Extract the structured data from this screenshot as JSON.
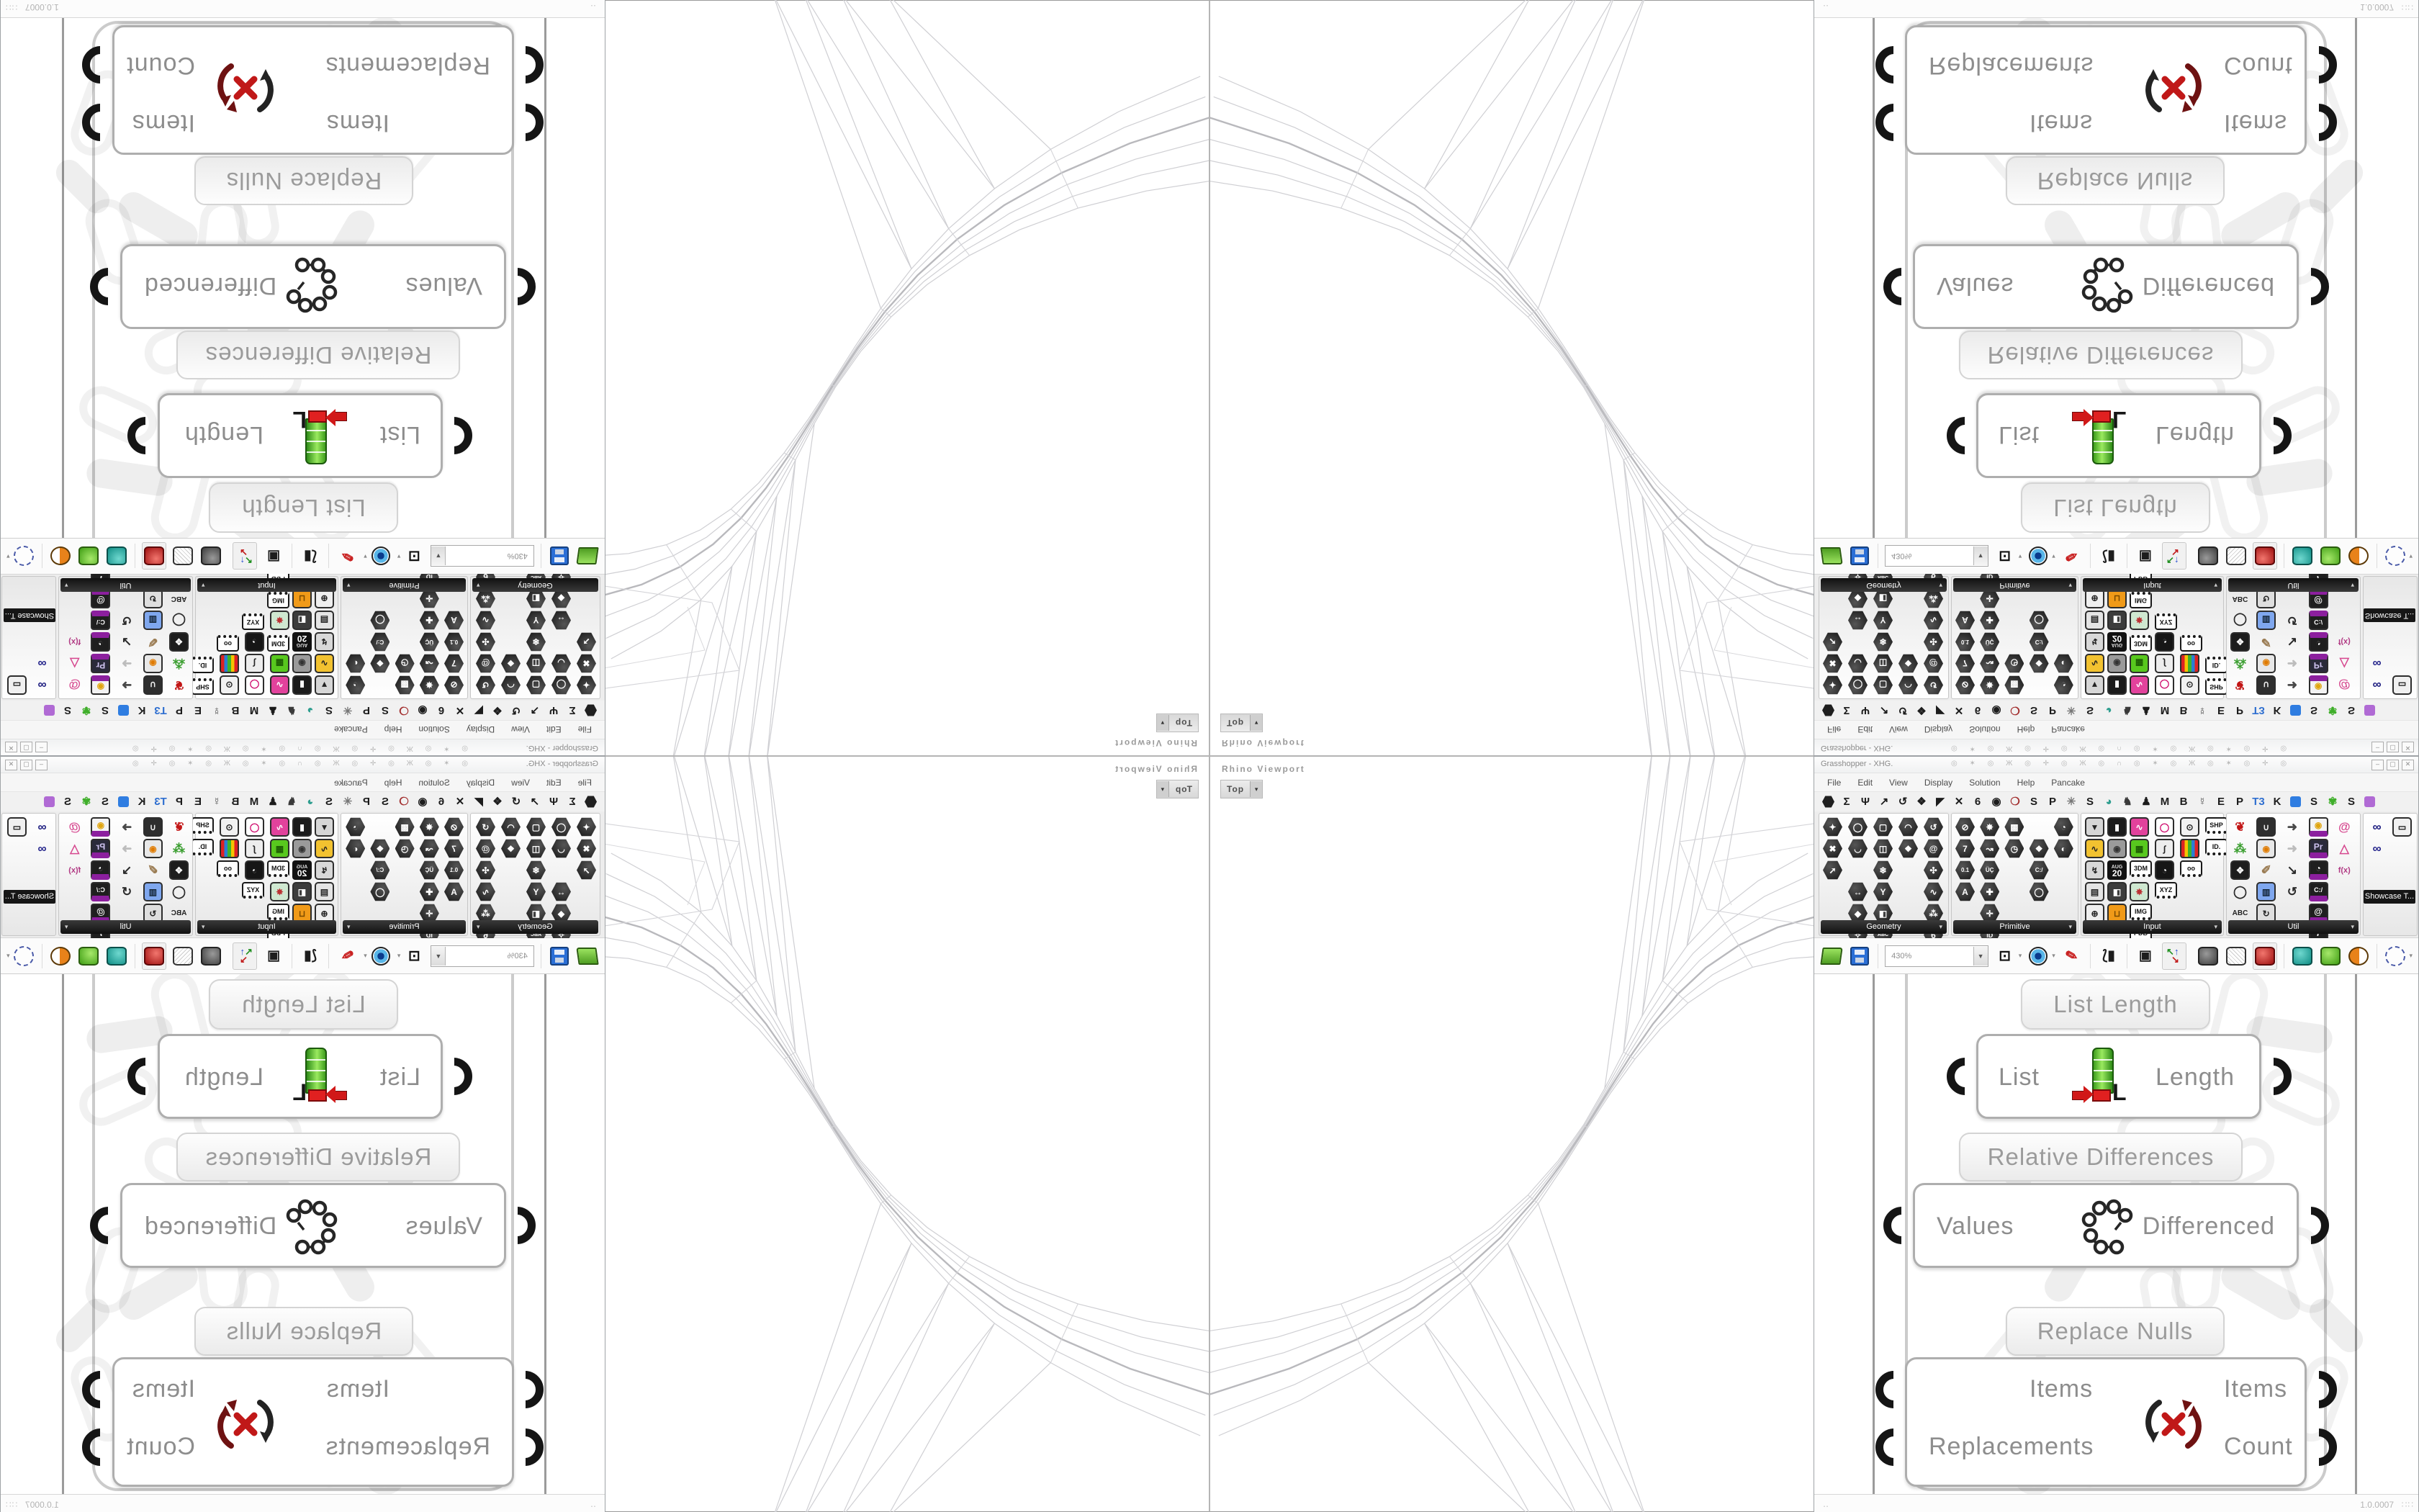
{
  "viewport": {
    "title": "Rhino Viewport",
    "tab": "Top",
    "tab_arrow": "▾"
  },
  "gh": {
    "title": "Grasshopper - XHG.",
    "doodles": "◎ ✶ ◎ Ж ◎ ✛ ◎ Ж ◎ ∩ ◎ ✶ ◎ Ж ◎ ✶ ◎ ✛ ◎ ∩ ◎ ◎ ✶ ◎ Ж ◎ ✶ ◎ ∩ ◎ ✛",
    "win_buttons": [
      "–",
      "▢",
      "✕"
    ],
    "menu": [
      "File",
      "Edit",
      "View",
      "Display",
      "Solution",
      "Help",
      "Pancake"
    ],
    "tabs": [
      {
        "k": "hex"
      },
      {
        "g": "Σ"
      },
      {
        "g": "Ψ"
      },
      {
        "g": "↗"
      },
      {
        "g": "↺"
      },
      {
        "g": "❖"
      },
      {
        "g": "◤"
      },
      {
        "g": "✕"
      },
      {
        "g": "6"
      },
      {
        "g": "◉"
      },
      {
        "g": "❍",
        "c": "#a33030"
      },
      {
        "g": "S"
      },
      {
        "g": "P"
      },
      {
        "g": "✳",
        "c": "#777"
      },
      {
        "g": "S"
      },
      {
        "g": "◕",
        "c": "#2f9e8f"
      },
      {
        "g": "♞",
        "c": "#3a3a3a"
      },
      {
        "g": "♟"
      },
      {
        "g": "M"
      },
      {
        "g": "B"
      },
      {
        "g": "☿",
        "c": "#4a4a4a"
      },
      {
        "g": "E"
      },
      {
        "g": "P"
      },
      {
        "g": "T3",
        "c": "#2f6fd0"
      },
      {
        "g": "K"
      },
      {
        "k": "sq",
        "bg": "#2f7de1"
      },
      {
        "g": "S"
      },
      {
        "g": "✾",
        "c": "#3fae2a"
      },
      {
        "g": "S"
      },
      {
        "k": "sq",
        "bg": "#b06ad4"
      }
    ],
    "panels": [
      {
        "label": "Geometry",
        "cols": 5,
        "icons": [
          {
            "k": "hex",
            "g": "✦"
          },
          {
            "k": "hex",
            "g": "◯"
          },
          {
            "k": "hex",
            "g": "▢"
          },
          {
            "k": "hex",
            "g": "◠"
          },
          {
            "k": "hex",
            "g": "↺"
          },
          {
            "k": "hex",
            "g": "✖"
          },
          {
            "k": "hex",
            "g": "◡"
          },
          {
            "k": "hex",
            "g": "◫"
          },
          {
            "k": "hex",
            "g": "❖"
          },
          {
            "k": "hex",
            "g": "@"
          },
          {
            "k": "hex",
            "g": "➚"
          },
          {
            "k": "blank"
          },
          {
            "k": "hex",
            "g": "❄"
          },
          {
            "k": "blank"
          },
          {
            "k": "hex",
            "g": "✣"
          },
          {
            "k": "blank"
          },
          {
            "k": "hex",
            "g": "↔"
          },
          {
            "k": "hex",
            "g": "Y"
          },
          {
            "k": "blank"
          },
          {
            "k": "hex",
            "g": "∿"
          },
          {
            "k": "blank"
          },
          {
            "k": "hex",
            "g": "◆"
          },
          {
            "k": "hex",
            "g": "◧"
          },
          {
            "k": "blank"
          },
          {
            "k": "hex",
            "g": "⁂"
          },
          {
            "k": "blank"
          },
          {
            "k": "hex",
            "g": "✧"
          },
          {
            "k": "hex",
            "g": "ABC",
            "s": 7
          },
          {
            "k": "blank"
          },
          {
            "k": "hex",
            "g": "6"
          }
        ]
      },
      {
        "label": "Primitive",
        "cols": 5,
        "icons": [
          {
            "k": "hex",
            "g": "⊘"
          },
          {
            "k": "hex",
            "g": "✸"
          },
          {
            "k": "hex",
            "g": "▩"
          },
          {
            "k": "blank"
          },
          {
            "k": "hex",
            "g": "◔"
          },
          {
            "k": "hex",
            "g": "7"
          },
          {
            "k": "hex",
            "g": "↝"
          },
          {
            "k": "hex",
            "g": "◷"
          },
          {
            "k": "hex",
            "g": "❖"
          },
          {
            "k": "hex",
            "g": "◐"
          },
          {
            "k": "hex",
            "g": "0.1",
            "s": 8
          },
          {
            "k": "hex",
            "g": "ÜÇ",
            "s": 8
          },
          {
            "k": "blank"
          },
          {
            "k": "hex",
            "g": "C:/",
            "s": 8
          },
          {
            "k": "blank"
          },
          {
            "k": "hex",
            "g": "A"
          },
          {
            "k": "hex",
            "g": "✚"
          },
          {
            "k": "blank"
          },
          {
            "k": "hex",
            "g": "◯"
          },
          {
            "k": "blank"
          },
          {
            "k": "blank"
          },
          {
            "k": "hex",
            "g": "✛"
          },
          {
            "k": "blank"
          },
          {
            "k": "blank"
          },
          {
            "k": "blank"
          },
          {
            "k": "blank"
          },
          {
            "k": "hex",
            "g": "ID",
            "s": 9
          },
          {
            "k": "blank"
          },
          {
            "k": "blank"
          },
          {
            "k": "blank"
          }
        ]
      },
      {
        "label": "Input",
        "cols": 6,
        "icons": [
          {
            "k": "sq",
            "g": "▼",
            "bg": "#d6d6d6"
          },
          {
            "k": "sq",
            "g": "▮",
            "bg": "#1b1b1b",
            "c": "#fff"
          },
          {
            "k": "sq",
            "g": "∿",
            "bg": "#e2429c",
            "c": "#fff"
          },
          {
            "k": "sq",
            "g": "◯",
            "bg": "#ffffff",
            "c": "#c06"
          },
          {
            "k": "sq",
            "g": "⊙",
            "bg": "#f1f1f1"
          },
          {
            "k": "chip",
            "g": "SHP"
          },
          {
            "k": "sq",
            "g": "∿",
            "bg": "#f2c230"
          },
          {
            "k": "sq",
            "g": "◉",
            "bg": "#9a9a9a",
            "c": "#333"
          },
          {
            "k": "sq",
            "g": "▦",
            "bg": "#58c81e",
            "c": "#1d5c04"
          },
          {
            "k": "sq",
            "g": "∫",
            "bg": "#ededed"
          },
          {
            "k": "stripes"
          },
          {
            "k": "chip",
            "g": "ID."
          },
          {
            "k": "sq",
            "g": "↯",
            "bg": "#d8d8d8"
          },
          {
            "k": "cal",
            "g": "AUG",
            "b": "20"
          },
          {
            "k": "chip",
            "g": "3DM"
          },
          {
            "k": "sq",
            "g": "◔",
            "bg": "#161616",
            "c": "#fff"
          },
          {
            "k": "chip",
            "g": "oo"
          },
          {
            "k": "blank"
          },
          {
            "k": "sq",
            "g": "▤",
            "bg": "#e4e4e4"
          },
          {
            "k": "sq",
            "g": "◧",
            "bg": "#3c3c3c",
            "c": "#fff"
          },
          {
            "k": "sq",
            "g": "✸",
            "bg": "#cfe8d0",
            "c": "#b33"
          },
          {
            "k": "chip",
            "g": "XYZ"
          },
          {
            "k": "blank"
          },
          {
            "k": "blank"
          },
          {
            "k": "sq",
            "g": "⊕",
            "bg": "#efefef"
          },
          {
            "k": "sq",
            "g": "⊔",
            "bg": "#f09a18",
            "c": "#7a4a00"
          },
          {
            "k": "chip",
            "g": "IMG"
          },
          {
            "k": "blank"
          },
          {
            "k": "blank"
          },
          {
            "k": "blank"
          },
          {
            "k": "blank"
          },
          {
            "k": "blank"
          },
          {
            "k": "chip",
            "g": "PDB"
          },
          {
            "k": "blank"
          },
          {
            "k": "blank"
          },
          {
            "k": "blank"
          }
        ]
      },
      {
        "label": "Util",
        "cols": 5,
        "icons": [
          {
            "k": "plain",
            "g": "❦",
            "c": "#c21616"
          },
          {
            "k": "sq",
            "g": "∪",
            "bg": "#2e2e2e",
            "c": "#eee"
          },
          {
            "k": "plain",
            "g": "➜",
            "c": "#4a4a4a"
          },
          {
            "k": "banner",
            "g": "◉",
            "c": "#e0a50f"
          },
          {
            "k": "plain",
            "g": "@",
            "c": "#d6488f"
          },
          {
            "k": "plain",
            "g": "⁂",
            "c": "#3a9e2f"
          },
          {
            "k": "sq",
            "g": "◉",
            "bg": "#e8e8e8",
            "c": "#e07b00"
          },
          {
            "k": "plain",
            "g": "➜",
            "c": "#bdbdbd"
          },
          {
            "k": "banner",
            "g": "Pr",
            "bg": "#2a2a3a",
            "c": "#cfc3f0"
          },
          {
            "k": "plain",
            "g": "△",
            "c": "#d6488f"
          },
          {
            "k": "sq",
            "g": "✥",
            "bg": "#1d1d1d",
            "c": "#fff"
          },
          {
            "k": "plain",
            "g": "✐",
            "c": "#9a7b52"
          },
          {
            "k": "plain",
            "g": "↘",
            "c": "#2b2b2b"
          },
          {
            "k": "banner",
            "g": "◔",
            "bg": "#1f1f1f",
            "c": "#fff"
          },
          {
            "k": "plain",
            "g": "f(x)",
            "c": "#b13a84",
            "s": 11
          },
          {
            "k": "plain",
            "g": "◯",
            "c": "#2b2b2b"
          },
          {
            "k": "sq",
            "g": "▥",
            "bg": "#7fa7ee",
            "c": "#123"
          },
          {
            "k": "plain",
            "g": "↺",
            "c": "#2b2b2b"
          },
          {
            "k": "banner",
            "g": "C:/",
            "bg": "#1f1f1f",
            "c": "#fff",
            "s": 9
          },
          {
            "k": "blank"
          },
          {
            "k": "plain",
            "g": "ABC",
            "c": "#222",
            "s": 10
          },
          {
            "k": "sq",
            "g": "↻",
            "bg": "#dedede",
            "c": "#222"
          },
          {
            "k": "blank"
          },
          {
            "k": "banner",
            "g": "@",
            "bg": "#1f1f1f",
            "c": "#fff"
          },
          {
            "k": "blank"
          },
          {
            "k": "blank"
          },
          {
            "k": "blank"
          },
          {
            "k": "blank"
          },
          {
            "k": "banner",
            "g": "7",
            "bg": "#1f1f1f",
            "c": "#fff"
          },
          {
            "k": "blank"
          }
        ]
      },
      {
        "label": "Showcase",
        "cols": 2,
        "icons": [
          {
            "k": "plain",
            "g": "∞",
            "c": "#1a1a7e"
          },
          {
            "k": "sq",
            "g": "▭",
            "bg": "#f0f0f0",
            "c": "#111"
          },
          {
            "k": "plain",
            "g": "∞",
            "c": "#22228a"
          },
          {
            "k": "blank"
          }
        ]
      }
    ],
    "showcase_label": "Showcase T...",
    "toolbar": {
      "zoom": "430%"
    },
    "status": {
      "left": "‥",
      "version": "1.0.0007",
      "grip": "∷∷"
    }
  },
  "canvas": {
    "groups": [
      {
        "label": "List Length",
        "component": {
          "inputs": [
            "List"
          ],
          "outputs": [
            "Length"
          ],
          "icon": "list-length-icon"
        }
      },
      {
        "label": "Relative Differences",
        "component": {
          "inputs": [
            "Values"
          ],
          "outputs": [
            "Differenced"
          ],
          "icon": "necklace-icon"
        }
      },
      {
        "label": "Replace Nulls",
        "component": {
          "inputs": [
            "Items",
            "Replacements"
          ],
          "outputs": [
            "Items",
            "Count"
          ],
          "icon": "replace-cycle-icon"
        }
      }
    ]
  },
  "colors": {
    "list_length_green": "#4fae26",
    "accent_red": "#e02020",
    "cycle_dark_red": "#7a1515",
    "panel_footer": "#161616",
    "wire_gray": "#cfcfd3"
  }
}
